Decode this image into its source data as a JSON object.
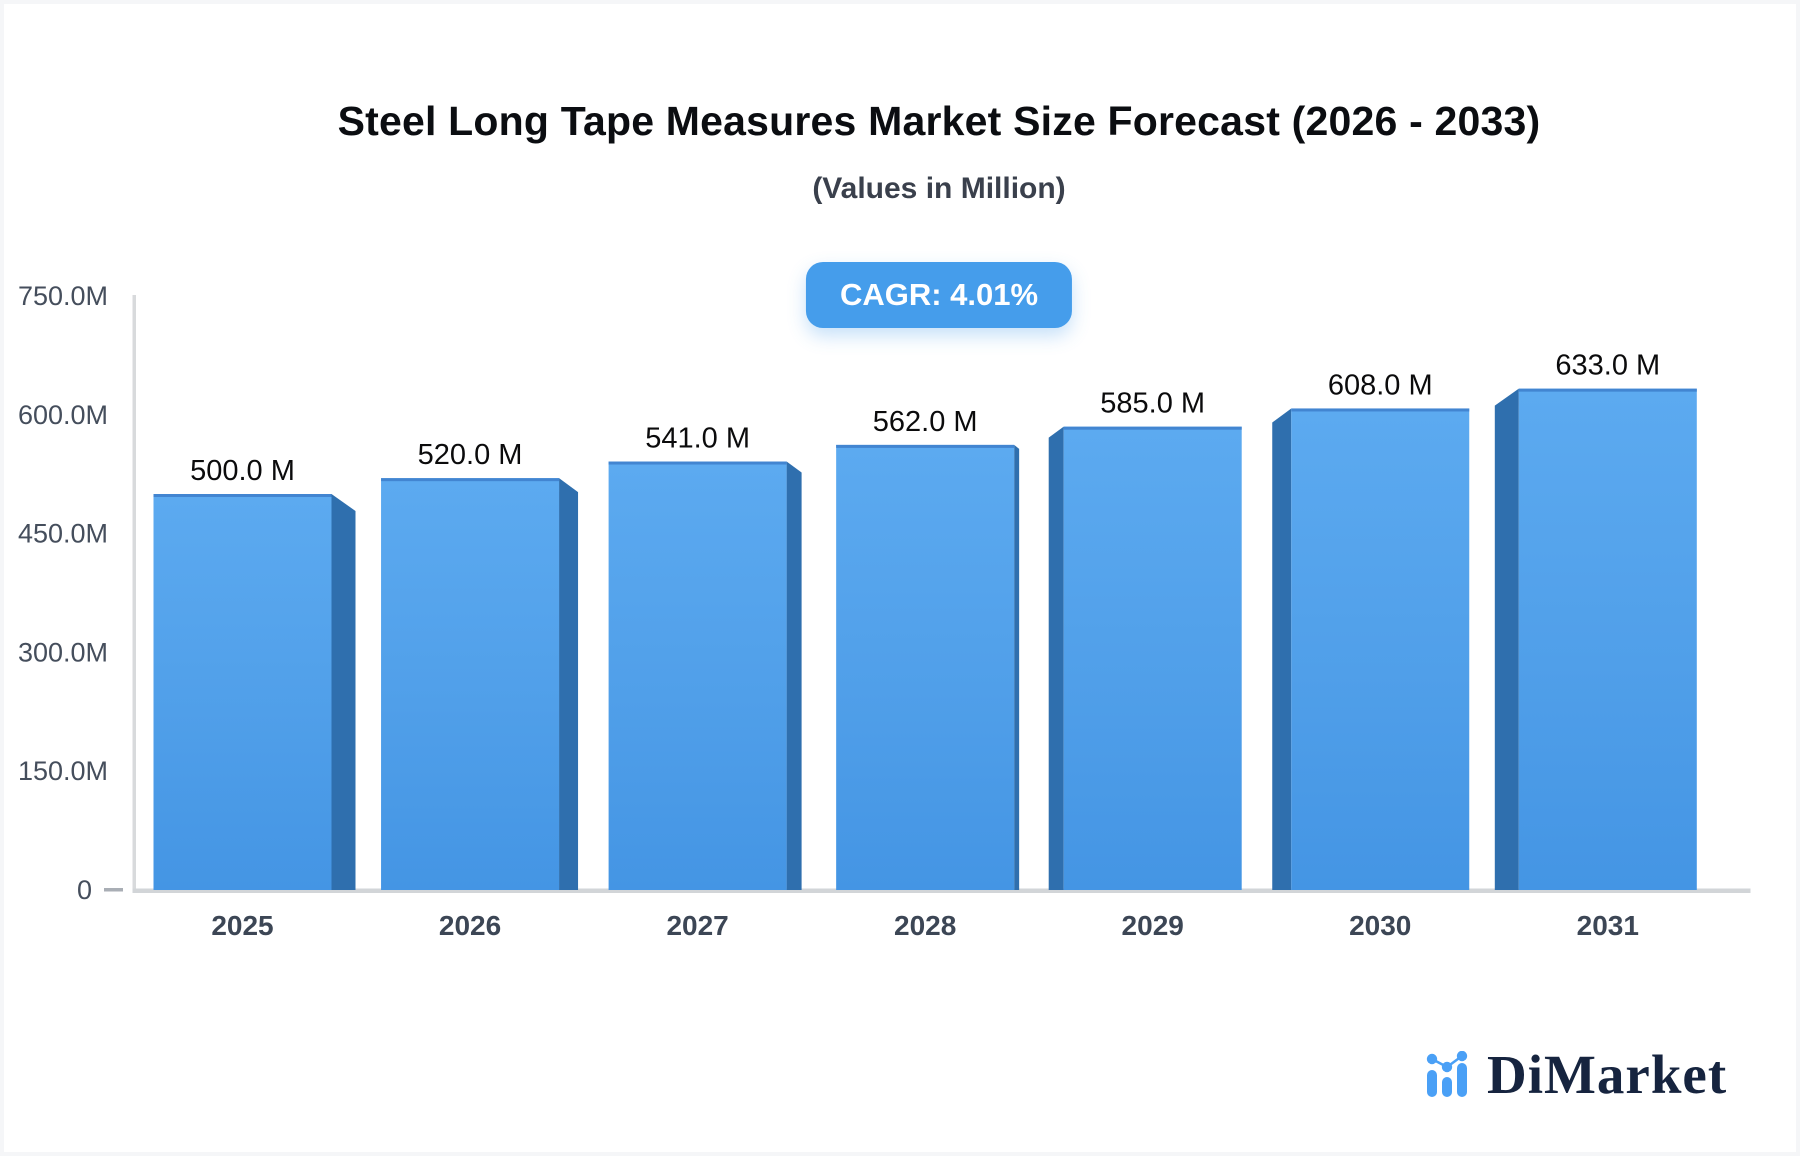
{
  "page": {
    "background": "#ffffff",
    "frame_color": "#f5f6f8"
  },
  "header": {
    "title": "Steel Long Tape Measures Market Size Forecast (2026 - 2033)",
    "subtitle": "(Values in Million)",
    "cagr_badge": "CAGR: 4.01%",
    "badge_color": "#459DEB"
  },
  "chart_data": {
    "type": "bar",
    "title": "Steel Long Tape Measures Market Size Forecast (2026 - 2033)",
    "subtitle": "(Values in Million)",
    "cagr": "4.01%",
    "unit": "Million",
    "categories": [
      "2025",
      "2026",
      "2027",
      "2028",
      "2029",
      "2030",
      "2031"
    ],
    "values": [
      500.0,
      520.0,
      541.0,
      562.0,
      585.0,
      608.0,
      633.0
    ],
    "value_labels": [
      "500.0 M",
      "520.0 M",
      "541.0 M",
      "562.0 M",
      "585.0 M",
      "608.0 M",
      "633.0 M"
    ],
    "ylim": [
      0,
      750
    ],
    "y_ticks": [
      {
        "value": 0,
        "label": "0"
      },
      {
        "value": 150,
        "label": "150.0M"
      },
      {
        "value": 300,
        "label": "300.0M"
      },
      {
        "value": 450,
        "label": "450.0M"
      },
      {
        "value": 600,
        "label": "600.0M"
      },
      {
        "value": 750,
        "label": "750.0M"
      }
    ],
    "grid": false,
    "legend": false,
    "style": {
      "bar_face_top": "#5caaf0",
      "bar_face_mid": "#509fe9",
      "bar_face_bottom": "#4495e4",
      "bar_top_edge": "#4285d1",
      "bar_side": "#2f6fae",
      "axis_line": "#d8dadc",
      "baseline": "#d2d5d8",
      "zero_tick": "#a9aeb5",
      "tick_text": "#454e5c",
      "category_text": "#3c4655",
      "value_text": "#0b0b0c"
    }
  },
  "footer": {
    "brand": "DiMarket",
    "brand_color": "#16243F",
    "icon_color": "#4AA0F6"
  }
}
